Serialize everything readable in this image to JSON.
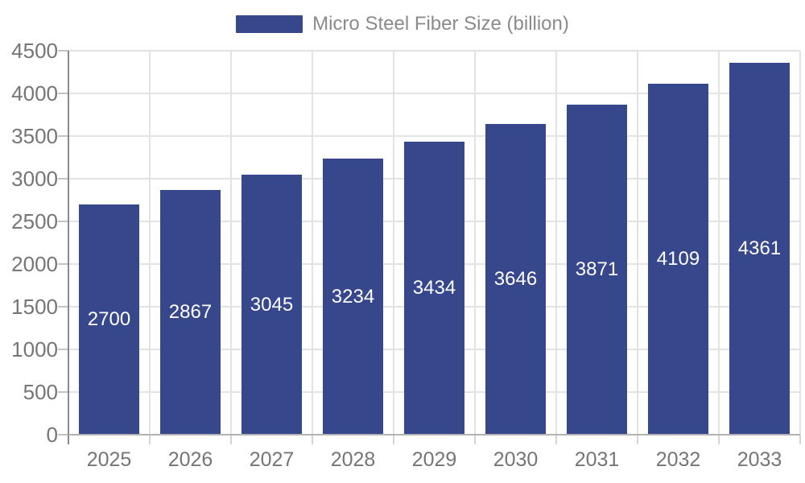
{
  "legend": {
    "label": "Micro Steel Fiber Size (billion)"
  },
  "chart_data": {
    "type": "bar",
    "title": "Micro Steel Fiber Size (billion)",
    "series_name": "Micro Steel Fiber Size (billion)",
    "categories": [
      "2025",
      "2026",
      "2027",
      "2028",
      "2029",
      "2030",
      "2031",
      "2032",
      "2033"
    ],
    "values": [
      2700,
      2867,
      3045,
      3234,
      3434,
      3646,
      3871,
      4109,
      4361
    ],
    "xlabel": "",
    "ylabel": "",
    "ylim": [
      0,
      4500
    ],
    "ytick_step": 500,
    "yticks": [
      0,
      500,
      1000,
      1500,
      2000,
      2500,
      3000,
      3500,
      4000,
      4500
    ],
    "grid": true,
    "legend_position": "top"
  },
  "colors": {
    "bar": "#37478c",
    "bar_label": "#ffffff",
    "axis_text": "#757575",
    "grid_line": "#e3e3e3",
    "y_axis_line": "#8a8a8a",
    "x_axis_line": "#b3b3b3",
    "legend_text": "#8a8a8a",
    "background": "#ffffff"
  }
}
